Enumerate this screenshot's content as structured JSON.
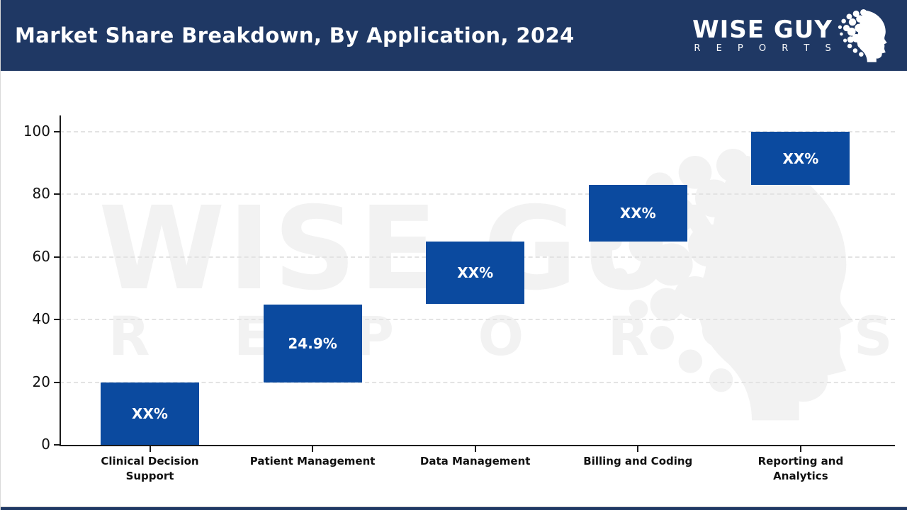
{
  "header": {
    "title": "Market Share Breakdown, By Application, 2024",
    "bg_color": "#1f3864",
    "logo": {
      "line1": "WISE GUY",
      "line2": "R E P O R T S",
      "face_icon": "wiseguy-face-icon"
    }
  },
  "watermark": {
    "line1": "WISE GUY",
    "line2": "R E P O R T S",
    "face_icon": "wiseguy-face-watermark-icon"
  },
  "chart_data": {
    "type": "bar",
    "subtype": "waterfall-floating-bars",
    "title": "Market Share Breakdown, By Application, 2024",
    "categories": [
      "Clinical Decision Support",
      "Patient Management",
      "Data Management",
      "Billing and Coding",
      "Reporting and Analytics"
    ],
    "bars": [
      {
        "category": "Clinical Decision Support",
        "start": 0,
        "end": 20,
        "label": "XX%"
      },
      {
        "category": "Patient Management",
        "start": 20,
        "end": 44.9,
        "label": "24.9%"
      },
      {
        "category": "Data Management",
        "start": 45,
        "end": 65,
        "label": "XX%"
      },
      {
        "category": "Billing and Coding",
        "start": 65,
        "end": 83,
        "label": "XX%"
      },
      {
        "category": "Reporting and Analytics",
        "start": 83,
        "end": 100,
        "label": "XX%"
      }
    ],
    "xlabel": "",
    "ylabel": "",
    "ylim": [
      0,
      105
    ],
    "yticks": [
      0,
      20,
      40,
      60,
      80,
      100
    ],
    "grid": "horizontal dashed",
    "legend": "none",
    "bar_color": "#0b4a9f",
    "bar_label_color": "#ffffff",
    "axis_color": "#1a1a1a"
  }
}
